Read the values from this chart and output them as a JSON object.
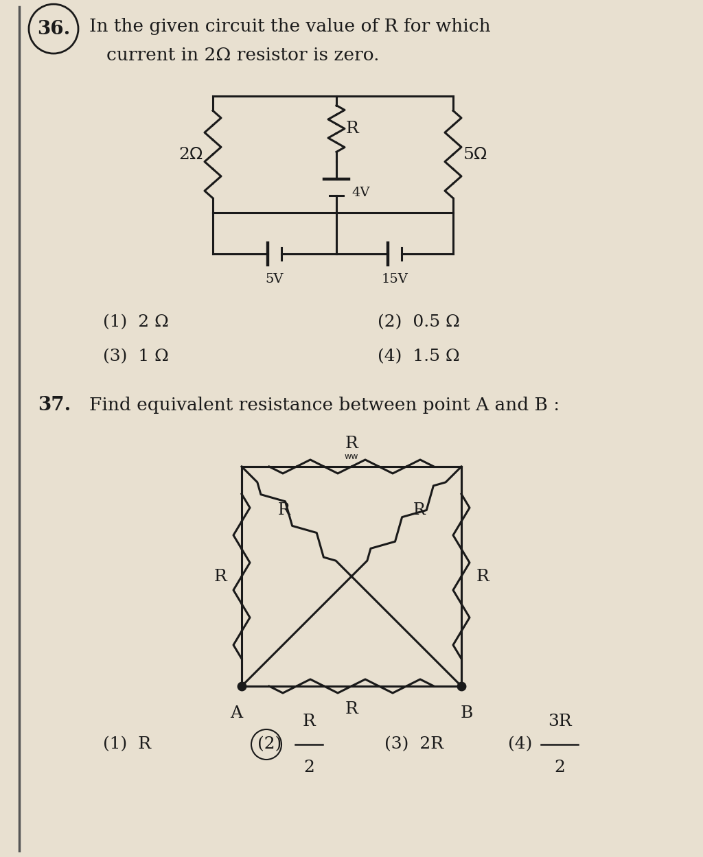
{
  "bg_color": "#e8e0d0",
  "text_color": "#1a1a1a",
  "q36_number": "36.",
  "q36_text_line1": "In the given circuit the value of R for which",
  "q36_text_line2": "current in 2Ω resistor is zero.",
  "q36_opts": [
    "(1)  2 Ω",
    "(2)  0.5 Ω",
    "(3)  1 Ω",
    "(4)  1.5 Ω"
  ],
  "q37_number": "37.",
  "q37_text": "Find equivalent resistance between point A and B :",
  "font_size_q": 19,
  "font_size_opt": 18,
  "font_size_label": 16
}
